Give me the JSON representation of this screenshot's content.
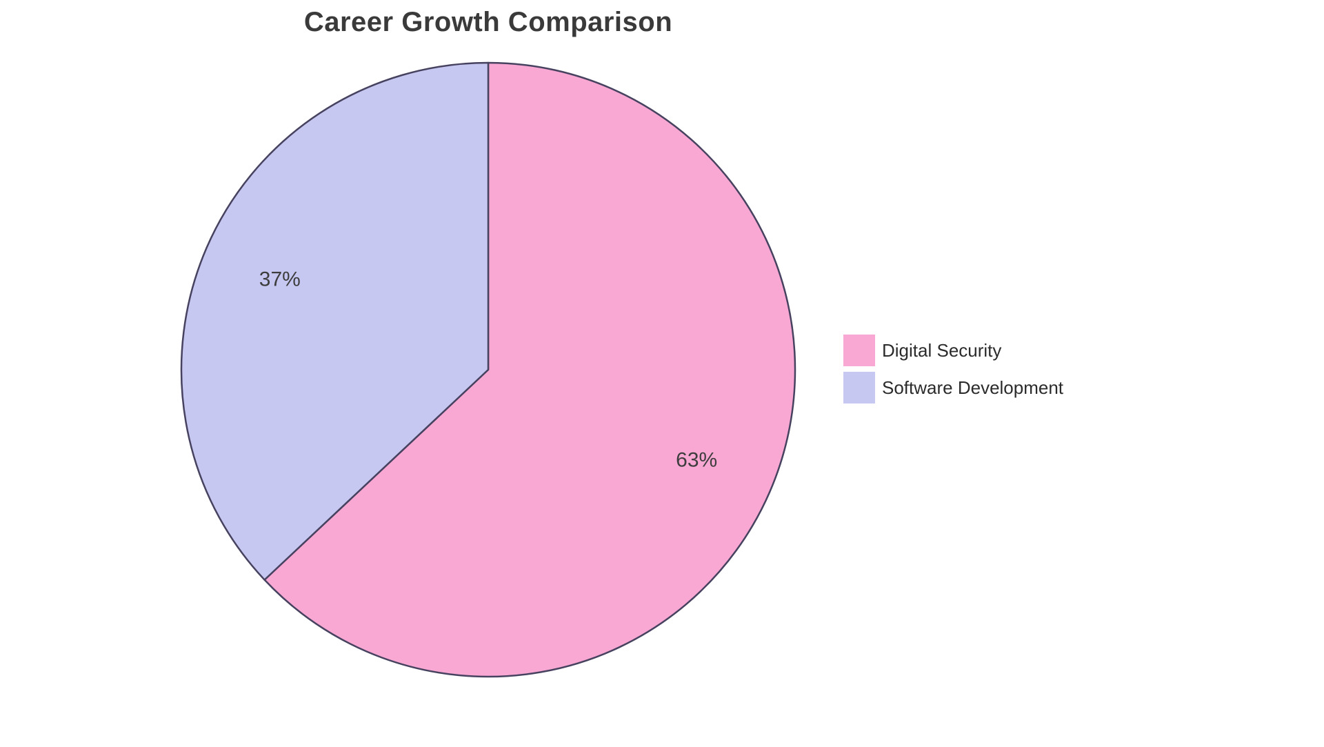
{
  "colors": {
    "background": "#ffffff",
    "stroke": "#46425F",
    "title_text": "#3a3a3a",
    "label_text": "#3d3d3d"
  },
  "chart_data": {
    "type": "pie",
    "title": "Career Growth Comparison",
    "labels": [
      "Digital Security",
      "Software Development"
    ],
    "values": [
      63,
      37
    ],
    "percent_labels": [
      "63%",
      "37%"
    ],
    "colors": [
      "#F9A8D4",
      "#C7C8F2"
    ],
    "start_angle_deg": -90,
    "direction": "clockwise",
    "legend_position": "right",
    "legend": [
      {
        "label": "Digital Security",
        "color": "#F9A8D4"
      },
      {
        "label": "Software Development",
        "color": "#C7C8F2"
      }
    ]
  }
}
